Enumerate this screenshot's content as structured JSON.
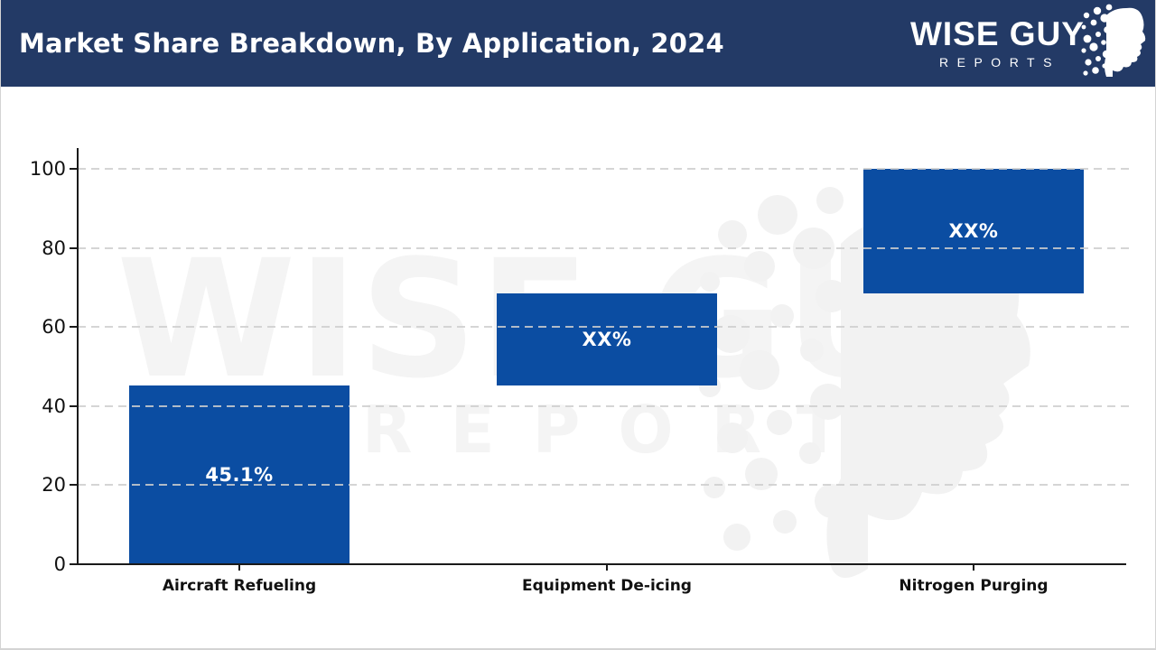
{
  "header": {
    "title": "Market Share Breakdown, By Application, 2024",
    "logo": {
      "line1": "WISE GUY",
      "line2": "REPORTS"
    }
  },
  "watermark": {
    "line1": "WISE GUY",
    "line2": "REPORTS"
  },
  "chart_data": {
    "type": "bar",
    "subtype": "floating-segment-columns",
    "title": "Market Share Breakdown, By Application, 2024",
    "categories": [
      "Aircraft Refueling",
      "Equipment De-icing",
      "Nitrogen Purging"
    ],
    "segments": [
      {
        "category": "Aircraft Refueling",
        "start": 0,
        "end": 45.1,
        "label": "45.1%"
      },
      {
        "category": "Equipment De-icing",
        "start": 45.1,
        "end": 68.5,
        "label": "XX%"
      },
      {
        "category": "Nitrogen Purging",
        "start": 68.5,
        "end": 100,
        "label": "XX%"
      }
    ],
    "yticks": [
      0,
      20,
      40,
      60,
      80,
      100
    ],
    "ylim": [
      0,
      100
    ],
    "xlabel": "",
    "ylabel": "",
    "grid": "dashed-horizontal",
    "legend": "none",
    "bar_color": "#0b4da2",
    "bar_label_color": "#ffffff"
  },
  "colors": {
    "header_bg": "#233a66",
    "bar": "#0b4da2",
    "grid": "#cecece",
    "axis": "#1a1a1a",
    "watermark": "#f4f4f4"
  }
}
